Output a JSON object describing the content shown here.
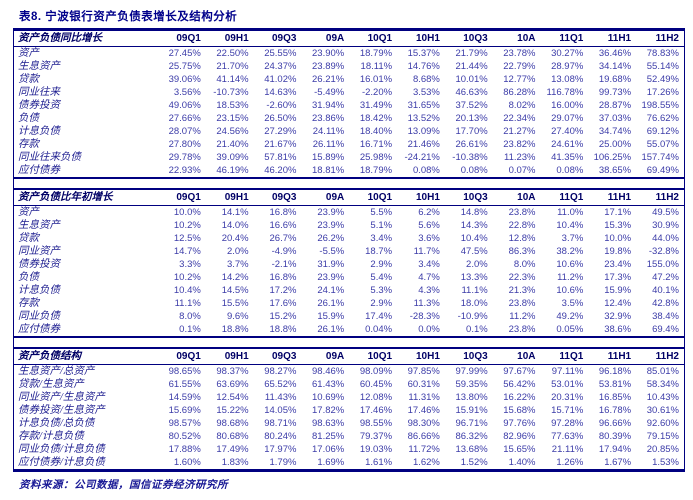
{
  "title": "表8. 宁波银行资产负债表增长及结构分析",
  "source_note": "资料来源：公司数据，国信证券经济研究所",
  "colors": {
    "accent": "#000080",
    "header_text": "#000066",
    "value_text": "#3c3ca8"
  },
  "columns": [
    "09Q1",
    "09H1",
    "09Q3",
    "09A",
    "10Q1",
    "10H1",
    "10Q3",
    "10A",
    "11Q1",
    "11H1",
    "11H2"
  ],
  "sections": [
    {
      "header": "资产负债同比增长",
      "rows": [
        {
          "label": "资产",
          "values": [
            "27.45%",
            "22.50%",
            "25.55%",
            "23.90%",
            "18.79%",
            "15.37%",
            "21.79%",
            "23.78%",
            "30.27%",
            "36.46%",
            "78.83%"
          ]
        },
        {
          "label": "生息资产",
          "values": [
            "25.75%",
            "21.70%",
            "24.37%",
            "23.89%",
            "18.11%",
            "14.76%",
            "21.44%",
            "22.79%",
            "28.97%",
            "34.14%",
            "55.14%"
          ]
        },
        {
          "label": "贷款",
          "values": [
            "39.06%",
            "41.14%",
            "41.02%",
            "26.21%",
            "16.01%",
            "8.68%",
            "10.01%",
            "12.77%",
            "13.08%",
            "19.68%",
            "52.49%"
          ]
        },
        {
          "label": "同业往来",
          "values": [
            "3.56%",
            "-10.73%",
            "14.63%",
            "-5.49%",
            "-2.20%",
            "3.53%",
            "46.63%",
            "86.28%",
            "116.78%",
            "99.73%",
            "17.26%"
          ]
        },
        {
          "label": "债券投资",
          "values": [
            "49.06%",
            "18.53%",
            "-2.60%",
            "31.94%",
            "31.49%",
            "31.65%",
            "37.52%",
            "8.02%",
            "16.00%",
            "28.87%",
            "198.55%"
          ]
        },
        {
          "label": "负债",
          "values": [
            "27.66%",
            "23.15%",
            "26.50%",
            "23.86%",
            "18.42%",
            "13.52%",
            "20.13%",
            "22.34%",
            "29.07%",
            "37.03%",
            "76.62%"
          ]
        },
        {
          "label": "计息负债",
          "values": [
            "28.07%",
            "24.56%",
            "27.29%",
            "24.11%",
            "18.40%",
            "13.09%",
            "17.70%",
            "21.27%",
            "27.40%",
            "34.74%",
            "69.12%"
          ]
        },
        {
          "label": "存款",
          "values": [
            "27.80%",
            "21.40%",
            "21.67%",
            "26.11%",
            "16.71%",
            "21.46%",
            "26.61%",
            "23.82%",
            "24.61%",
            "25.00%",
            "55.07%"
          ]
        },
        {
          "label": "同业往来负债",
          "values": [
            "29.78%",
            "39.09%",
            "57.81%",
            "15.89%",
            "25.98%",
            "-24.21%",
            "-10.38%",
            "11.23%",
            "41.35%",
            "106.25%",
            "157.74%"
          ]
        },
        {
          "label": "应付债券",
          "values": [
            "22.93%",
            "46.19%",
            "46.20%",
            "18.81%",
            "18.79%",
            "0.08%",
            "0.08%",
            "0.07%",
            "0.08%",
            "38.65%",
            "69.49%"
          ]
        }
      ]
    },
    {
      "header": "资产负债比年初增长",
      "rows": [
        {
          "label": "资产",
          "values": [
            "10.0%",
            "14.1%",
            "16.8%",
            "23.9%",
            "5.5%",
            "6.2%",
            "14.8%",
            "23.8%",
            "11.0%",
            "17.1%",
            "49.5%"
          ]
        },
        {
          "label": "生息资产",
          "values": [
            "10.2%",
            "14.0%",
            "16.6%",
            "23.9%",
            "5.1%",
            "5.6%",
            "14.3%",
            "22.8%",
            "10.4%",
            "15.3%",
            "30.9%"
          ]
        },
        {
          "label": "贷款",
          "values": [
            "12.5%",
            "20.4%",
            "26.7%",
            "26.2%",
            "3.4%",
            "3.6%",
            "10.4%",
            "12.8%",
            "3.7%",
            "10.0%",
            "44.0%"
          ]
        },
        {
          "label": "同业资产",
          "values": [
            "14.7%",
            "2.0%",
            "-4.9%",
            "-5.5%",
            "18.7%",
            "11.7%",
            "47.5%",
            "86.3%",
            "38.2%",
            "19.8%",
            "-32.8%"
          ]
        },
        {
          "label": "债券投资",
          "values": [
            "3.3%",
            "3.7%",
            "-2.1%",
            "31.9%",
            "2.9%",
            "3.4%",
            "2.0%",
            "8.0%",
            "10.6%",
            "23.4%",
            "155.0%"
          ]
        },
        {
          "label": "负债",
          "values": [
            "10.2%",
            "14.2%",
            "16.8%",
            "23.9%",
            "5.4%",
            "4.7%",
            "13.3%",
            "22.3%",
            "11.2%",
            "17.3%",
            "47.2%"
          ]
        },
        {
          "label": "计息负债",
          "values": [
            "10.4%",
            "14.5%",
            "17.2%",
            "24.1%",
            "5.3%",
            "4.3%",
            "11.1%",
            "21.3%",
            "10.6%",
            "15.9%",
            "40.1%"
          ]
        },
        {
          "label": "存款",
          "values": [
            "11.1%",
            "15.5%",
            "17.6%",
            "26.1%",
            "2.9%",
            "11.3%",
            "18.0%",
            "23.8%",
            "3.5%",
            "12.4%",
            "42.8%"
          ]
        },
        {
          "label": "同业负债",
          "values": [
            "8.0%",
            "9.6%",
            "15.2%",
            "15.9%",
            "17.4%",
            "-28.3%",
            "-10.9%",
            "11.2%",
            "49.2%",
            "32.9%",
            "38.4%"
          ]
        },
        {
          "label": "应付债券",
          "values": [
            "0.1%",
            "18.8%",
            "18.8%",
            "26.1%",
            "0.04%",
            "0.0%",
            "0.1%",
            "23.8%",
            "0.05%",
            "38.6%",
            "69.4%"
          ]
        }
      ]
    },
    {
      "header": "资产负债结构",
      "rows": [
        {
          "label": "生息资产/总资产",
          "values": [
            "98.65%",
            "98.37%",
            "98.27%",
            "98.46%",
            "98.09%",
            "97.85%",
            "97.99%",
            "97.67%",
            "97.11%",
            "96.18%",
            "85.01%"
          ]
        },
        {
          "label": "贷款/生息资产",
          "values": [
            "61.55%",
            "63.69%",
            "65.52%",
            "61.43%",
            "60.45%",
            "60.31%",
            "59.35%",
            "56.42%",
            "53.01%",
            "53.81%",
            "58.34%"
          ]
        },
        {
          "label": "同业资产/生息资产",
          "values": [
            "14.59%",
            "12.54%",
            "11.43%",
            "10.69%",
            "12.08%",
            "11.31%",
            "13.80%",
            "16.22%",
            "20.31%",
            "16.85%",
            "10.43%"
          ]
        },
        {
          "label": "债券投资/生息资产",
          "values": [
            "15.69%",
            "15.22%",
            "14.05%",
            "17.82%",
            "17.46%",
            "17.46%",
            "15.91%",
            "15.68%",
            "15.71%",
            "16.78%",
            "30.61%"
          ]
        },
        {
          "label": "计息负债/总负债",
          "values": [
            "98.57%",
            "98.68%",
            "98.71%",
            "98.63%",
            "98.55%",
            "98.30%",
            "96.71%",
            "97.76%",
            "97.28%",
            "96.66%",
            "92.60%"
          ]
        },
        {
          "label": "存款/计息负债",
          "values": [
            "80.52%",
            "80.68%",
            "80.24%",
            "81.25%",
            "79.37%",
            "86.66%",
            "86.32%",
            "82.96%",
            "77.63%",
            "80.39%",
            "79.15%"
          ]
        },
        {
          "label": "同业负债/计息负债",
          "values": [
            "17.88%",
            "17.49%",
            "17.97%",
            "17.06%",
            "19.03%",
            "11.72%",
            "13.68%",
            "15.65%",
            "21.11%",
            "17.94%",
            "20.85%"
          ]
        },
        {
          "label": "应付债券/计息负债",
          "values": [
            "1.60%",
            "1.83%",
            "1.79%",
            "1.69%",
            "1.61%",
            "1.62%",
            "1.52%",
            "1.40%",
            "1.26%",
            "1.67%",
            "1.53%"
          ]
        }
      ]
    }
  ]
}
